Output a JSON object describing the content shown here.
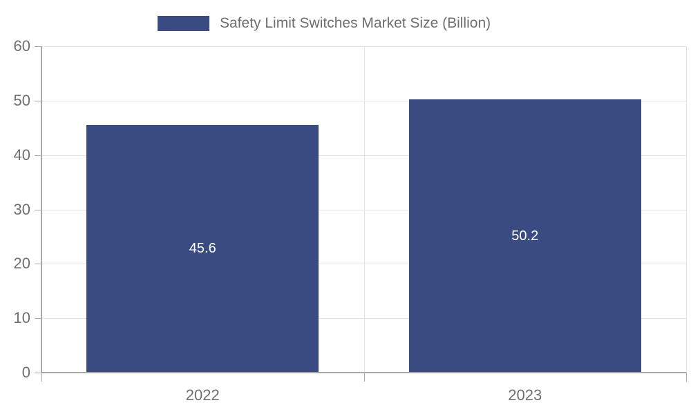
{
  "colors": {
    "bar": "#3A4B82",
    "grid": "#e3e3e3",
    "axis": "#a8a8a8",
    "text": "#6f6f6f",
    "value_label": "#ffffff",
    "background": "#ffffff"
  },
  "chart_data": {
    "type": "bar",
    "title": "",
    "legend": {
      "position": "top-center",
      "entries": [
        "Safety Limit Switches Market Size (Billion)"
      ]
    },
    "categories": [
      "2022",
      "2023"
    ],
    "series": [
      {
        "name": "Safety Limit Switches Market Size (Billion)",
        "values": [
          45.6,
          50.2
        ]
      }
    ],
    "value_labels": [
      "45.6",
      "50.2"
    ],
    "xlabel": "",
    "ylabel": "",
    "ylim": [
      0,
      60
    ],
    "yticks": [
      0,
      10,
      20,
      30,
      40,
      50,
      60
    ],
    "grid": true,
    "value_labels_shown": true
  }
}
